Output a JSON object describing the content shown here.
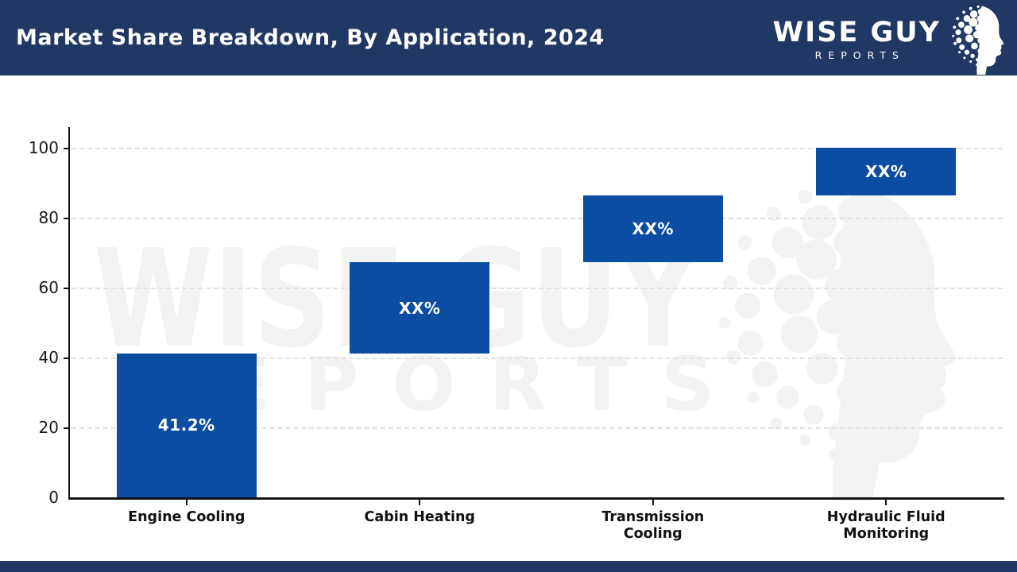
{
  "header": {
    "title": "Market Share Breakdown, By Application, 2024",
    "logo": {
      "line1": "WISE GUY",
      "line2": "REPORTS"
    }
  },
  "watermark": {
    "line1": "WISE GUY",
    "line2": "REPORTS"
  },
  "footer": {},
  "colors": {
    "header_bg": "#1F3864",
    "footer_bg": "#1F3864",
    "bar": "#0B4DA2",
    "bar_label": "#FFFFFF",
    "gridline": "#E0E0E0",
    "axis": "#151515",
    "tick_text": "#1A1A1A",
    "watermark": "#F3F3F3"
  },
  "chart_data": {
    "type": "bar",
    "variant": "waterfall",
    "title": "Market Share Breakdown, By Application, 2024",
    "categories": [
      "Engine Cooling",
      "Cabin Heating",
      "Transmission Cooling",
      "Hydraulic Fluid Monitoring"
    ],
    "bars": [
      {
        "category": "Engine Cooling",
        "start": 0,
        "end": 41.2,
        "label": "41.2%"
      },
      {
        "category": "Cabin Heating",
        "start": 41.2,
        "end": 67.2,
        "label": "XX%"
      },
      {
        "category": "Transmission Cooling",
        "start": 67.2,
        "end": 86.3,
        "label": "XX%"
      },
      {
        "category": "Hydraulic Fluid Monitoring",
        "start": 86.3,
        "end": 100,
        "label": "XX%"
      }
    ],
    "xlabel": "",
    "ylabel": "",
    "ylim": [
      0,
      100
    ],
    "yticks": [
      0,
      20,
      40,
      60,
      80,
      100
    ],
    "grid": "horizontal-dashed",
    "legend": "none"
  }
}
